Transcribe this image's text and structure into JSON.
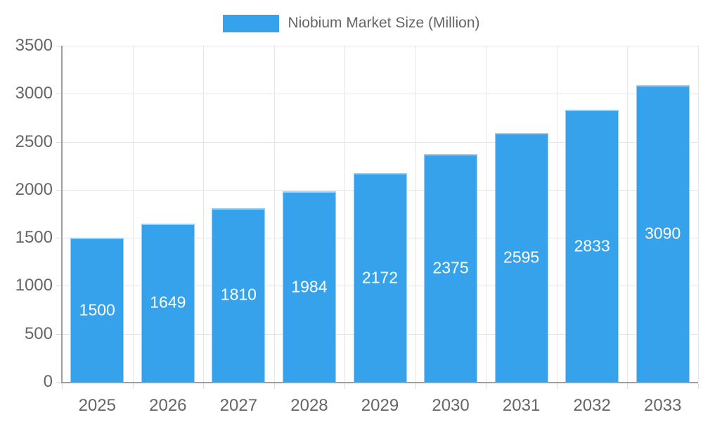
{
  "chart_data": {
    "type": "bar",
    "title": "Niobium Market Size (Million)",
    "categories": [
      "2025",
      "2026",
      "2027",
      "2028",
      "2029",
      "2030",
      "2031",
      "2032",
      "2033"
    ],
    "values": [
      1500,
      1649,
      1810,
      1984,
      2172,
      2375,
      2595,
      2833,
      3090
    ],
    "xlabel": "",
    "ylabel": "",
    "ylim": [
      0,
      3500
    ],
    "ytick_step": 500,
    "ytick_labels": [
      "0",
      "500",
      "1000",
      "1500",
      "2000",
      "2500",
      "3000",
      "3500"
    ],
    "grid": true,
    "legend_position": "top",
    "value_labels": "inside-center",
    "colors": {
      "bar_fill": "#36A2EB",
      "bar_border": "#9CCFF3",
      "value_label": "#ffffff",
      "axis_line": "#9E9E9E",
      "gridline": "#E6E6E6",
      "tick_mark": "#DADADA",
      "tick_label": "#666666",
      "legend_text": "#666666"
    }
  }
}
